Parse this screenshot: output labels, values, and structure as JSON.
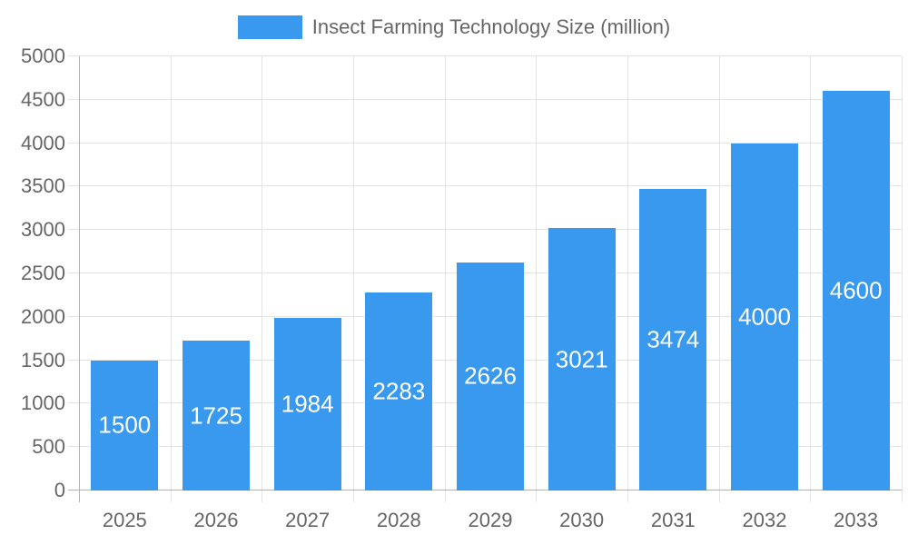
{
  "chart_data": {
    "type": "bar",
    "title": "Insect Farming Technology Size (million)",
    "legend_position": "top",
    "categories": [
      "2025",
      "2026",
      "2027",
      "2028",
      "2029",
      "2030",
      "2031",
      "2032",
      "2033"
    ],
    "values": [
      1500,
      1725,
      1984,
      2283,
      2626,
      3021,
      3474,
      4000,
      4600
    ],
    "series": [
      {
        "name": "Insect Farming Technology Size (million)",
        "values": [
          1500,
          1725,
          1984,
          2283,
          2626,
          3021,
          3474,
          4000,
          4600
        ]
      }
    ],
    "xlabel": "",
    "ylabel": "",
    "ylim": [
      0,
      5000
    ],
    "ytick_step": 500,
    "ytick_labels": [
      "0",
      "500",
      "1000",
      "1500",
      "2000",
      "2500",
      "3000",
      "3500",
      "4000",
      "4500",
      "5000"
    ],
    "grid": true,
    "value_labels_shown": true,
    "colors": {
      "bar": "#3899ef",
      "value_label_text": "#ffffff",
      "axis_text": "#666666",
      "legend_text": "#666666",
      "gridline": "#e3e3e3",
      "axis_line": "#b3b3b3",
      "background": "#ffffff"
    }
  }
}
